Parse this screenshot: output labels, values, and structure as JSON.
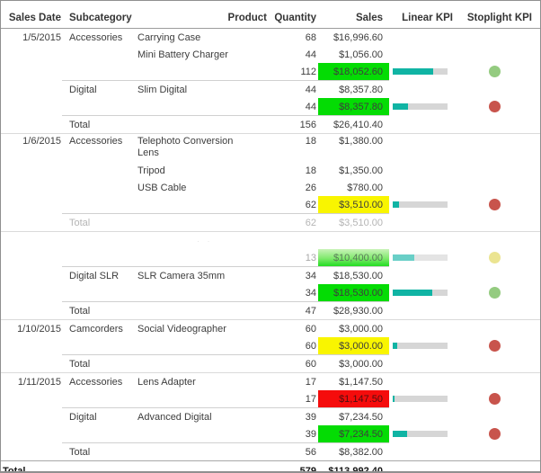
{
  "table": {
    "columns": [
      "Sales Date",
      "Subcategory",
      "Product",
      "Quantity",
      "Sales",
      "Linear KPI",
      "Stoplight KPI"
    ],
    "rows": [
      {
        "date": "1/5/2015",
        "subcategory": "Accessories",
        "product": "Carrying Case",
        "quantity": "68",
        "sales": "$16,996.60"
      },
      {
        "product": "Mini Battery Charger",
        "quantity": "44",
        "sales": "$1,056.00"
      },
      {
        "quantity": "112",
        "sales": "$18,052.60",
        "highlight": "green",
        "bar": 73,
        "light": "green"
      },
      {
        "subcategory": "Digital",
        "product": "Slim Digital",
        "quantity": "44",
        "sales": "$8,357.80",
        "border": "sub"
      },
      {
        "quantity": "44",
        "sales": "$8,357.80",
        "highlight": "green",
        "bar": 28,
        "light": "red"
      },
      {
        "subcategory": "Total",
        "quantity": "156",
        "sales": "$26,410.40",
        "border": "sub",
        "row_style": "total"
      },
      {
        "date": "1/6/2015",
        "subcategory": "Accessories",
        "product": "Telephoto Conversion",
        "product2": "Lens",
        "quantity": "18",
        "sales": "$1,380.00",
        "border": "section",
        "two_line": true
      },
      {
        "product": "Tripod",
        "quantity": "18",
        "sales": "$1,350.00"
      },
      {
        "product": "USB Cable",
        "quantity": "26",
        "sales": "$780.00"
      },
      {
        "quantity": "62",
        "sales": "$3,510.00",
        "highlight": "yellow",
        "bar": 12,
        "light": "red"
      },
      {
        "subcategory": "Total",
        "quantity": "62",
        "sales": "$3,510.00",
        "border": "sub",
        "row_style": "total",
        "faded": true
      },
      {
        "marks": "· ·",
        "border": "section"
      },
      {
        "quantity": "13",
        "sales": "$10,400.00",
        "highlight": "fadegreen",
        "bar": 40,
        "bar_faded": true,
        "light": "yellow",
        "faded": "partial"
      },
      {
        "subcategory": "Digital SLR",
        "product": "SLR Camera 35mm",
        "quantity": "34",
        "sales": "$18,530.00",
        "border": "sub"
      },
      {
        "quantity": "34",
        "sales": "$18,530.00",
        "highlight": "green",
        "bar": 72,
        "light": "green"
      },
      {
        "subcategory": "Total",
        "quantity": "47",
        "sales": "$28,930.00",
        "border": "sub",
        "row_style": "total"
      },
      {
        "date": "1/10/2015",
        "subcategory": "Camcorders",
        "product": "Social Videographer",
        "quantity": "60",
        "sales": "$3,000.00",
        "border": "section"
      },
      {
        "quantity": "60",
        "sales": "$3,000.00",
        "highlight": "yellow",
        "bar": 8,
        "light": "red"
      },
      {
        "subcategory": "Total",
        "quantity": "60",
        "sales": "$3,000.00",
        "border": "sub",
        "row_style": "total"
      },
      {
        "date": "1/11/2015",
        "subcategory": "Accessories",
        "product": "Lens Adapter",
        "quantity": "17",
        "sales": "$1,147.50",
        "border": "section"
      },
      {
        "quantity": "17",
        "sales": "$1,147.50",
        "highlight": "red",
        "bar": 4,
        "light": "red"
      },
      {
        "subcategory": "Digital",
        "product": "Advanced Digital",
        "quantity": "39",
        "sales": "$7,234.50",
        "border": "sub"
      },
      {
        "quantity": "39",
        "sales": "$7,234.50",
        "highlight": "green",
        "bar": 26,
        "light": "red"
      },
      {
        "subcategory": "Total",
        "quantity": "56",
        "sales": "$8,382.00",
        "border": "sub",
        "row_style": "total"
      },
      {
        "date": "Total",
        "quantity": "579",
        "sales": "$113,992.40",
        "border": "grand",
        "row_style": "grand"
      }
    ]
  },
  "colors": {
    "cell_green": "#04dc04",
    "cell_yellow": "#f9f500",
    "cell_red": "#f50c0c",
    "cell_red_text": "#4d1010",
    "cell_fadegreen": "linear-gradient(180deg,#c9f3b8,#7fe96c 55%,#22dd22)",
    "fadegreen_text": "#587a58",
    "bar_fill": "#10b4a4",
    "bar_track": "#d6d6d6",
    "bar_fill_faded": "#69cfc7",
    "bar_track_faded": "#e4e4e4",
    "light_green": "#94cb80",
    "light_red": "#c8544c",
    "light_yellow": "#ebe491",
    "dim_text": "#a8a8a8"
  }
}
